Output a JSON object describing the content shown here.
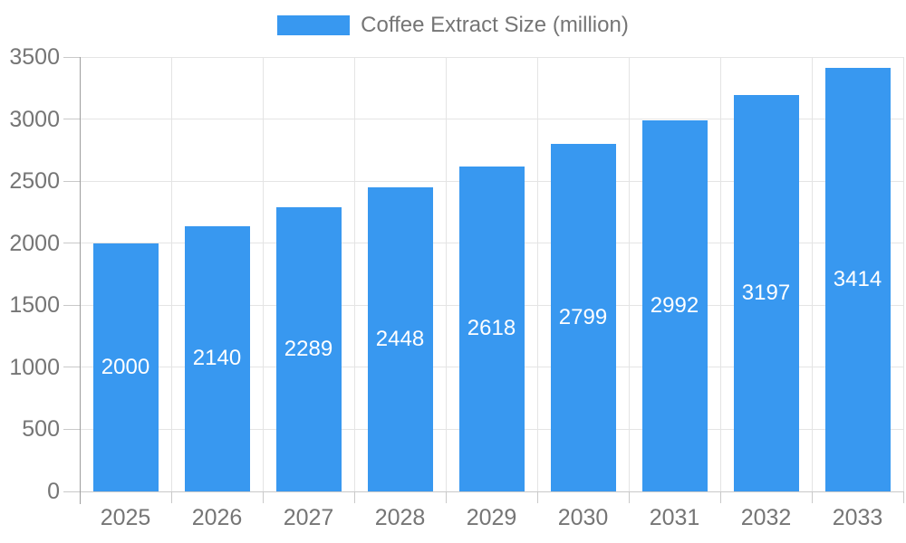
{
  "chart_data": {
    "type": "bar",
    "title": "Coffee Extract Size (million)",
    "legend_position": "top",
    "categories": [
      "2025",
      "2026",
      "2027",
      "2028",
      "2029",
      "2030",
      "2031",
      "2032",
      "2033"
    ],
    "series": [
      {
        "name": "Coffee Extract Size (million)",
        "values": [
          2000,
          2140,
          2289,
          2448,
          2618,
          2799,
          2992,
          3197,
          3414
        ]
      }
    ],
    "xlabel": "",
    "ylabel": "",
    "ylim": [
      0,
      3500
    ],
    "yticks": [
      0,
      500,
      1000,
      1500,
      2000,
      2500,
      3000,
      3500
    ],
    "grid": true,
    "bar_labels_shown": true,
    "colors": {
      "bar": "#3898F0",
      "bar_label_text": "#ffffff",
      "axis_text": "#757575",
      "legend_text": "#757575",
      "gridline": "#e4e4e4",
      "axis_line": "#9e9e9e",
      "tick_line": "#c9c9c9"
    }
  }
}
